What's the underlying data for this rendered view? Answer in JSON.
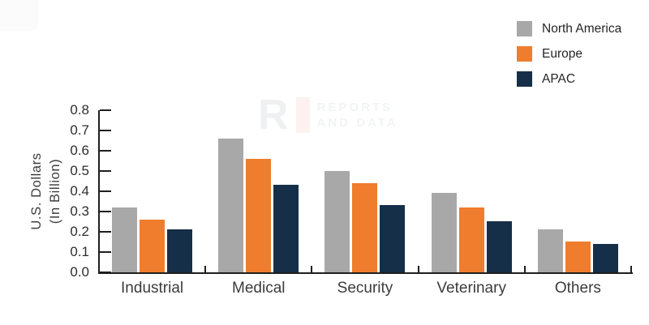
{
  "legend": {
    "items": [
      {
        "label": "North America",
        "color": "#a8a8a8"
      },
      {
        "label": "Europe",
        "color": "#ef7d2d"
      },
      {
        "label": "APAC",
        "color": "#162f48"
      }
    ]
  },
  "y_axis": {
    "title_line1": "U.S. Dollars",
    "title_line2": "(In Billion)",
    "ticks": [
      "0.0",
      "0.1",
      "0.2",
      "0.3",
      "0.4",
      "0.5",
      "0.6",
      "0.7",
      "0.8"
    ]
  },
  "watermark": {
    "logo_letter": "R",
    "brand_line1": "REPORTS",
    "brand_line2": "AND DATA"
  },
  "chart_data": {
    "type": "bar",
    "categories": [
      "Industrial",
      "Medical",
      "Security",
      "Veterinary",
      "Others"
    ],
    "series": [
      {
        "name": "North America",
        "color": "#a8a8a8",
        "values": [
          0.32,
          0.66,
          0.5,
          0.39,
          0.21
        ]
      },
      {
        "name": "Europe",
        "color": "#ef7d2d",
        "values": [
          0.26,
          0.56,
          0.44,
          0.32,
          0.15
        ]
      },
      {
        "name": "APAC",
        "color": "#162f48",
        "values": [
          0.21,
          0.43,
          0.33,
          0.25,
          0.14
        ]
      }
    ],
    "ylabel": "U.S. Dollars (In Billion)",
    "ylim": [
      0,
      0.8
    ],
    "ytick_step": 0.1,
    "grid": false,
    "legend_position": "top-right"
  }
}
